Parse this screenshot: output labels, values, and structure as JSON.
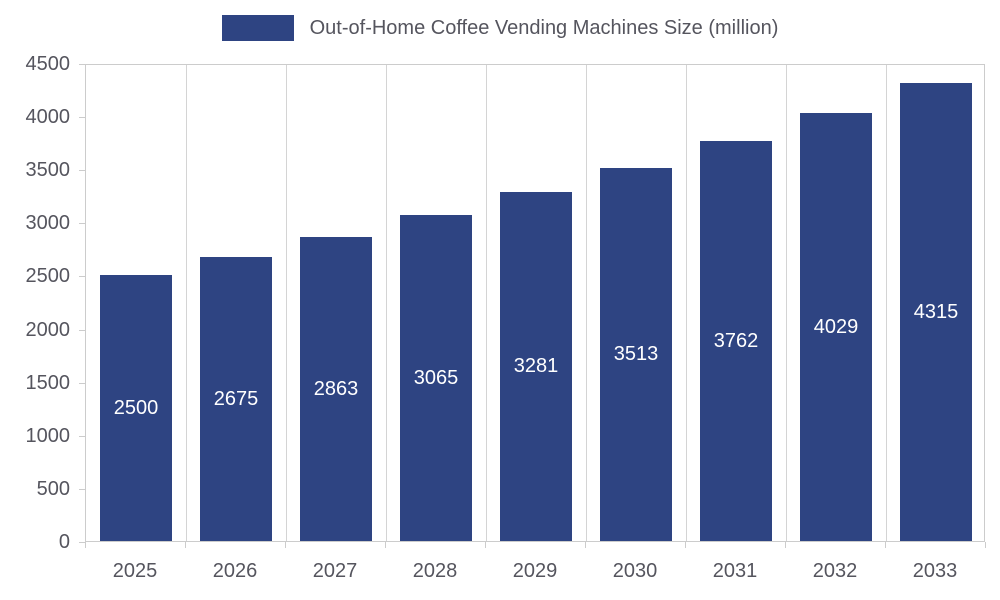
{
  "chart_data": {
    "type": "bar",
    "title": "Out-of-Home Coffee Vending Machines Size (million)",
    "categories": [
      "2025",
      "2026",
      "2027",
      "2028",
      "2029",
      "2030",
      "2031",
      "2032",
      "2033"
    ],
    "values": [
      2500,
      2675,
      2863,
      3065,
      3281,
      3513,
      3762,
      4029,
      4315
    ],
    "xlabel": "",
    "ylabel": "",
    "ylim": [
      0,
      4500
    ],
    "yticks": [
      0,
      500,
      1000,
      1500,
      2000,
      2500,
      3000,
      3500,
      4000,
      4500
    ],
    "grid": "vertical-only",
    "legend_position": "top-center",
    "bar_color": "#2E4482",
    "value_label_color": "#ffffff",
    "axis_label_color": "#55555e",
    "grid_color": "#d4d4d4"
  }
}
